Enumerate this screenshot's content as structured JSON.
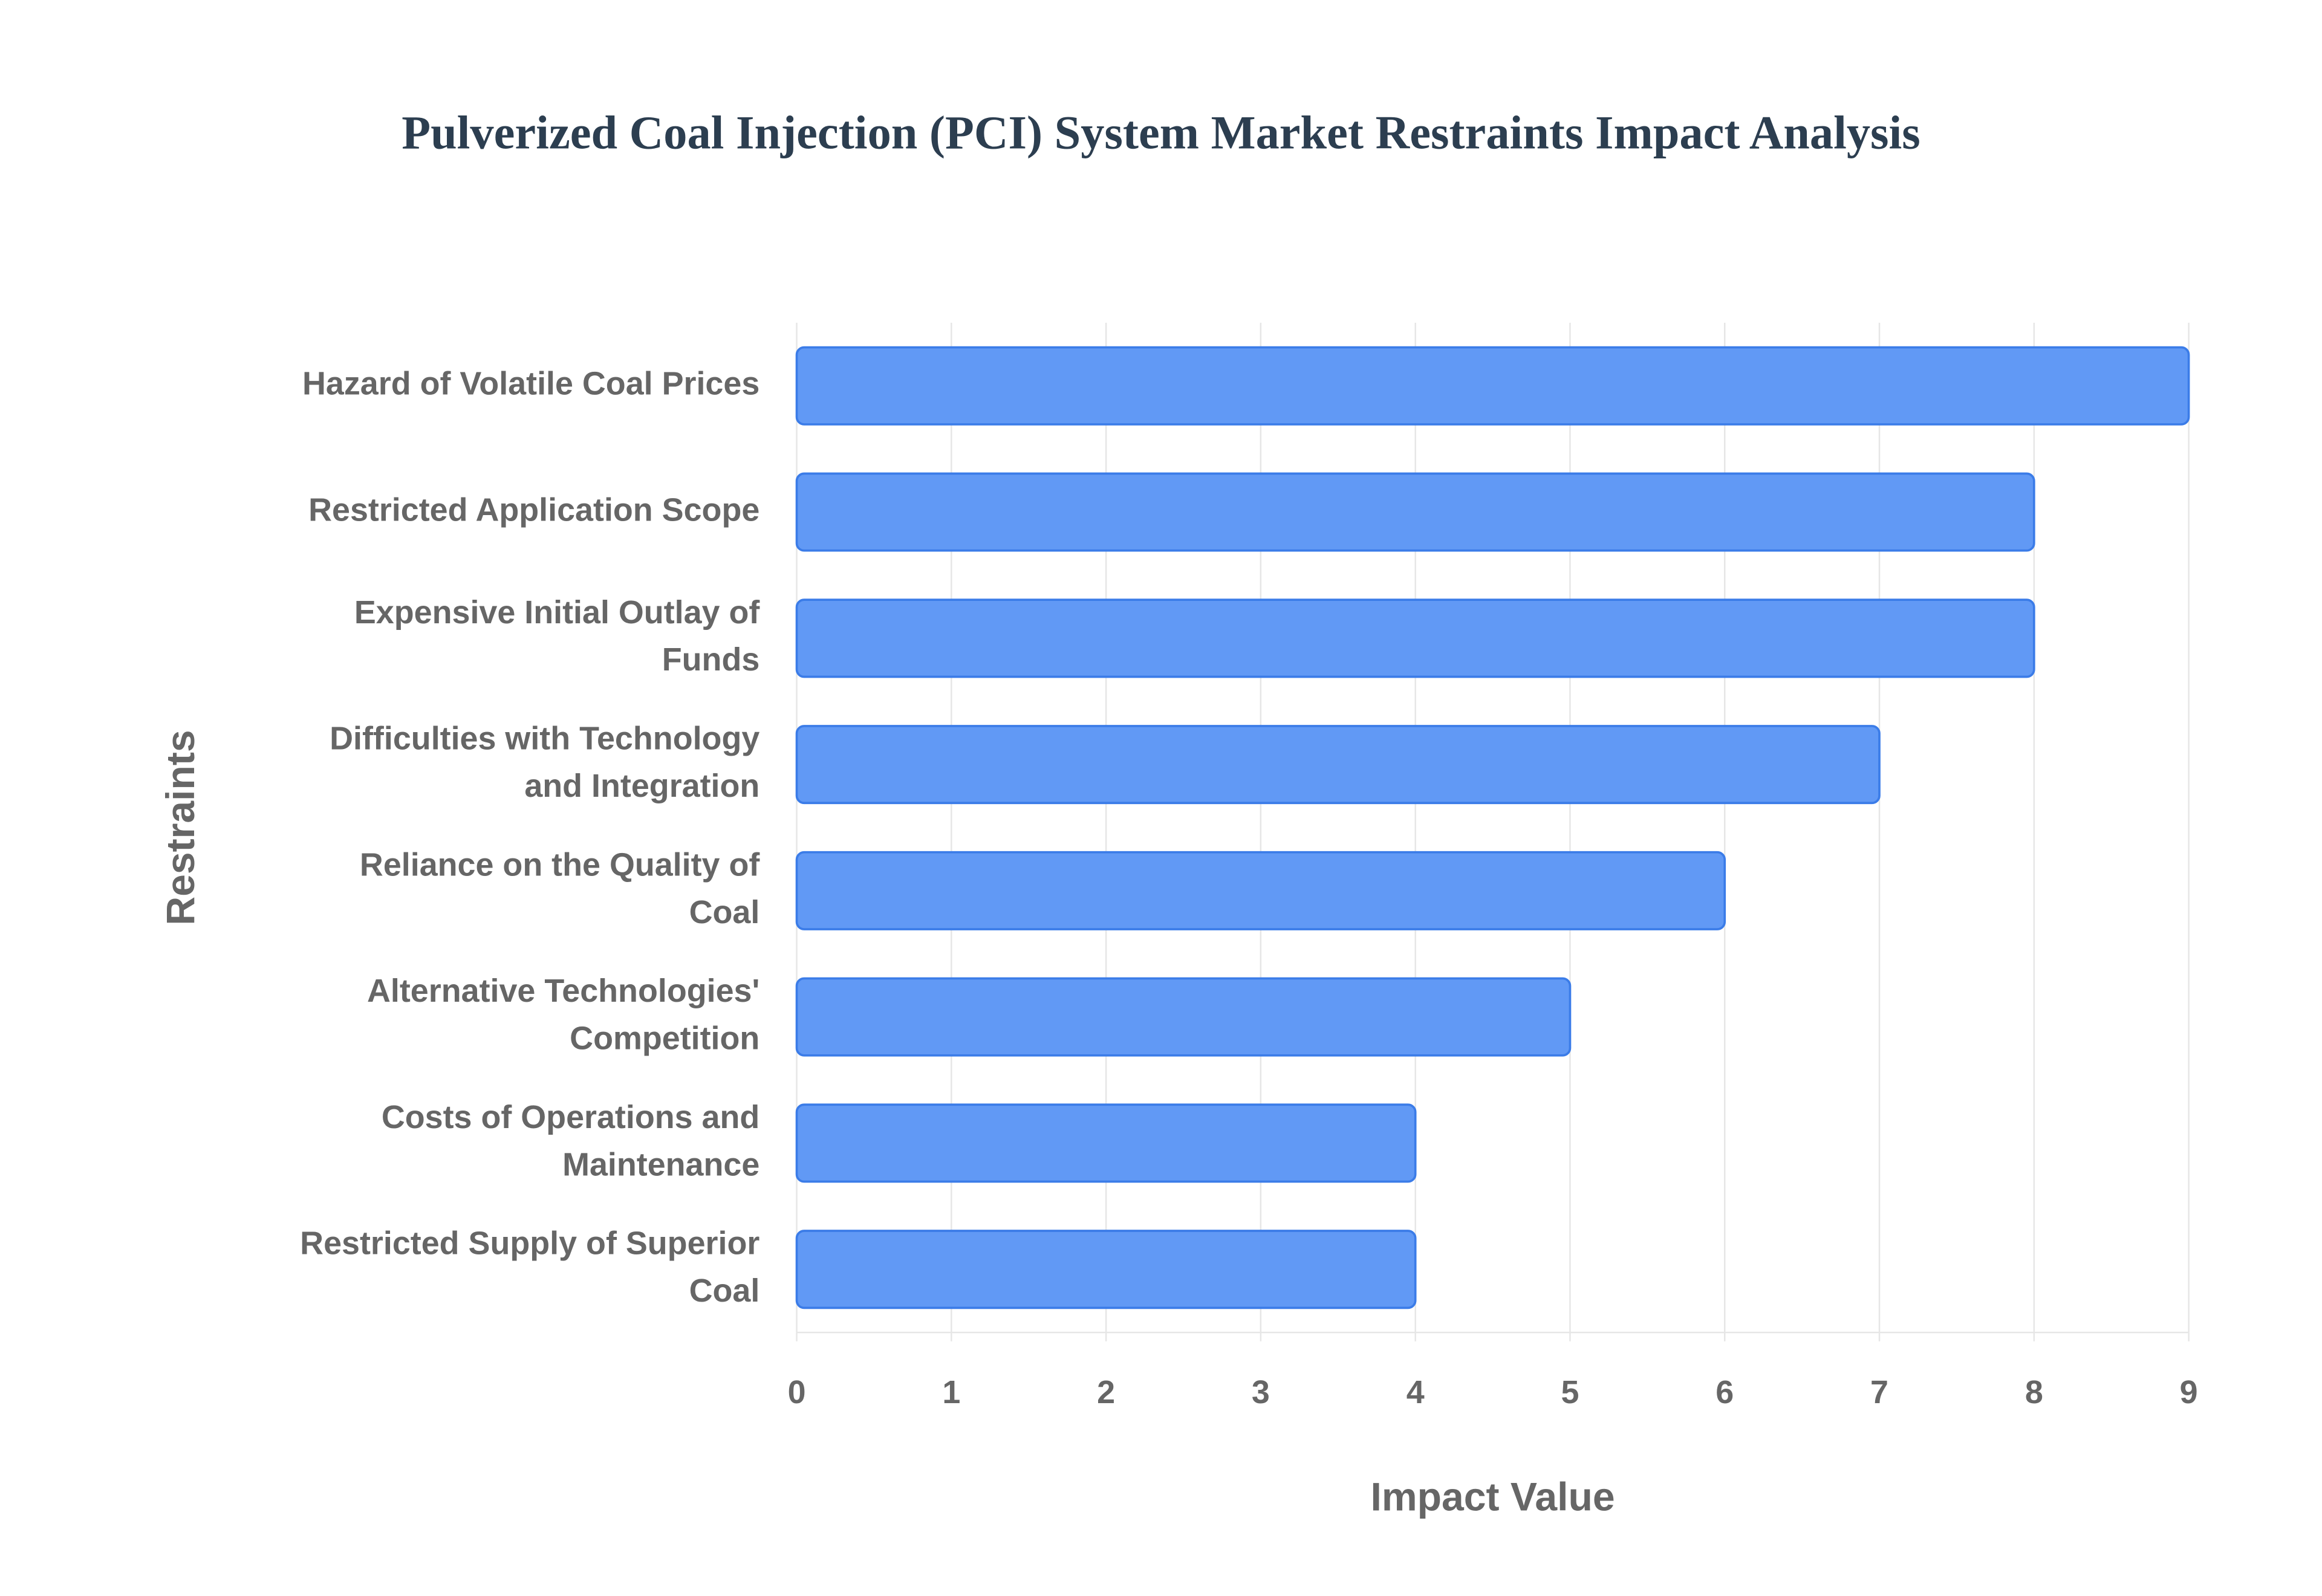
{
  "chart_data": {
    "type": "bar",
    "orientation": "horizontal",
    "title": "Pulverized Coal Injection (PCI) System Market Restraints Impact Analysis",
    "x_label": "Impact Value",
    "y_label": "Restraints",
    "categories": [
      "Hazard of Volatile Coal Prices",
      "Restricted Application Scope",
      "Expensive Initial Outlay of Funds",
      "Difficulties with Technology and Integration",
      "Reliance on the Quality of Coal",
      "Alternative Technologies' Competition",
      "Costs of Operations and Maintenance",
      "Restricted Supply of Superior Coal"
    ],
    "values": [
      9,
      8,
      8,
      7,
      6,
      5,
      4,
      4
    ],
    "color": "#6199f5",
    "edge_color": "#3b7ce8",
    "xlim": [
      0,
      9
    ],
    "xticks": [
      0,
      1,
      2,
      3,
      4,
      5,
      6,
      7,
      8,
      9
    ],
    "grid": true
  }
}
